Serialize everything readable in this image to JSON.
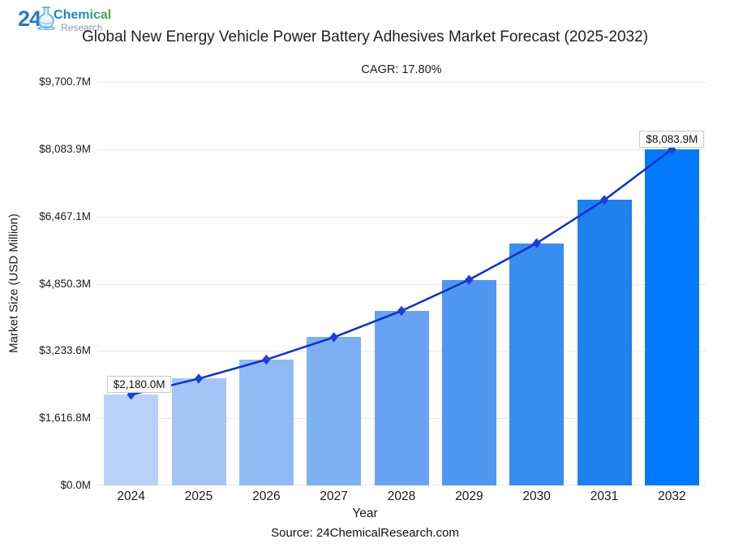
{
  "logo": {
    "number": "24",
    "name_top": "Chemical",
    "name_bottom": "Research"
  },
  "footer": {
    "source": "Source: 24ChemicalResearch.com"
  },
  "chart_data": {
    "type": "bar",
    "overlay": "line",
    "title": "Global New Energy Vehicle Power Battery Adhesives Market Forecast (2025-2032)",
    "subtitle": "CAGR: 17.80%",
    "xlabel": "Year",
    "ylabel": "Market Size (USD Million)",
    "categories": [
      "2024",
      "2025",
      "2026",
      "2027",
      "2028",
      "2029",
      "2030",
      "2031",
      "2032"
    ],
    "values": [
      2180.0,
      2568.0,
      3025.2,
      3563.6,
      4198.0,
      4945.2,
      5825.4,
      6862.4,
      8083.9
    ],
    "ylim": [
      0,
      9700.7
    ],
    "yticks": [
      0,
      1616.8,
      3233.6,
      4850.3,
      6467.1,
      8083.9,
      9700.7
    ],
    "ytick_labels": [
      "$0.0M",
      "$1,616.8M",
      "$3,233.6M",
      "$4,850.3M",
      "$6,467.1M",
      "$8,083.9M",
      "$9,700.7M"
    ],
    "grid": true,
    "legend": false,
    "point_labels": [
      {
        "index": 0,
        "text": "$2,180.0M",
        "dx": 10
      },
      {
        "index": 8,
        "text": "$8,083.9M",
        "dx": 0
      }
    ],
    "colors": {
      "bars": [
        "#b8d1f6",
        "#a5c6f5",
        "#91baf4",
        "#7daff3",
        "#69a3f2",
        "#4f97f1",
        "#388df0",
        "#1f80ef",
        "#0478fa"
      ],
      "line": "#1130c6",
      "marker": "#1c3fd9",
      "grid": "#e8e8e8",
      "label_box_border": "#c9c9c9",
      "text": "#1a1a1a"
    }
  }
}
